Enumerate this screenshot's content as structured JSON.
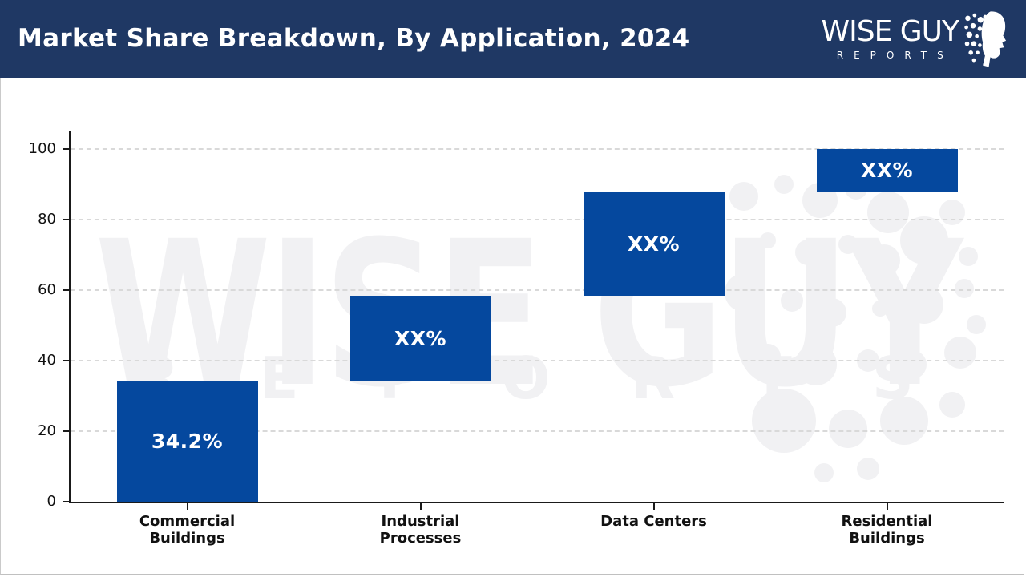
{
  "header": {
    "title": "Market Share Breakdown, By Application, 2024",
    "logo": {
      "line1": "WISE GUY",
      "line2": "REPORTS"
    }
  },
  "watermark": {
    "line1": "WISE GUY",
    "line2": "REPORTS"
  },
  "colors": {
    "header_bg": "#1F3864",
    "bar": "#05489E",
    "gridline": "#D9D9D9",
    "axis": "#1A1A1A",
    "watermark": "#F1F1F3",
    "bar_label": "#FFFFFF"
  },
  "chart_data": {
    "type": "bar",
    "subtype": "waterfall",
    "title": "Market Share Breakdown, By Application, 2024",
    "categories": [
      "Commercial Buildings",
      "Industrial Processes",
      "Data Centers",
      "Residential Buildings"
    ],
    "category_lines": [
      [
        "Commercial",
        "Buildings"
      ],
      [
        "Industrial",
        "Processes"
      ],
      [
        "Data Centers"
      ],
      [
        "Residential",
        "Buildings"
      ]
    ],
    "segments": [
      {
        "name": "Commercial Buildings",
        "start": 0,
        "end": 34.2,
        "value": 34.2,
        "value_label": "34.2%"
      },
      {
        "name": "Industrial Processes",
        "start": 34.2,
        "end": 58.5,
        "value": 24.3,
        "value_label": "XX%"
      },
      {
        "name": "Data Centers",
        "start": 58.5,
        "end": 87.8,
        "value": 29.3,
        "value_label": "XX%"
      },
      {
        "name": "Residential Buildings",
        "start": 88.0,
        "end": 100.0,
        "value": 12.0,
        "value_label": "XX%"
      }
    ],
    "y_axis": {
      "min": 0,
      "max": 100,
      "ticks": [
        0,
        20,
        40,
        60,
        80,
        100
      ],
      "gridlines": "dashed-horizontal"
    },
    "x_axis": {
      "label": "",
      "tick_marks": true
    },
    "legend": "none"
  }
}
